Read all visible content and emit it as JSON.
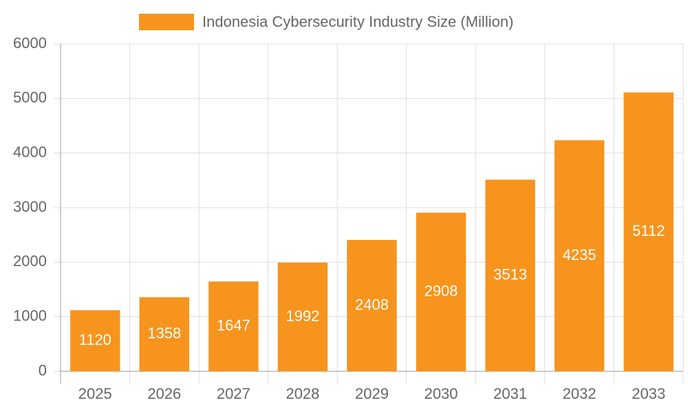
{
  "chart_data": {
    "type": "bar",
    "legend_label": "Indonesia Cybersecurity Industry Size (Million)",
    "categories": [
      "2025",
      "2026",
      "2027",
      "2028",
      "2029",
      "2030",
      "2031",
      "2032",
      "2033"
    ],
    "values": [
      1120,
      1358,
      1647,
      1992,
      2408,
      2908,
      3513,
      4235,
      5112
    ],
    "color": "#f7941d",
    "ylim": [
      0,
      6000
    ],
    "yticks": [
      0,
      1000,
      2000,
      3000,
      4000,
      5000,
      6000
    ],
    "grid": true,
    "legend": "top"
  }
}
